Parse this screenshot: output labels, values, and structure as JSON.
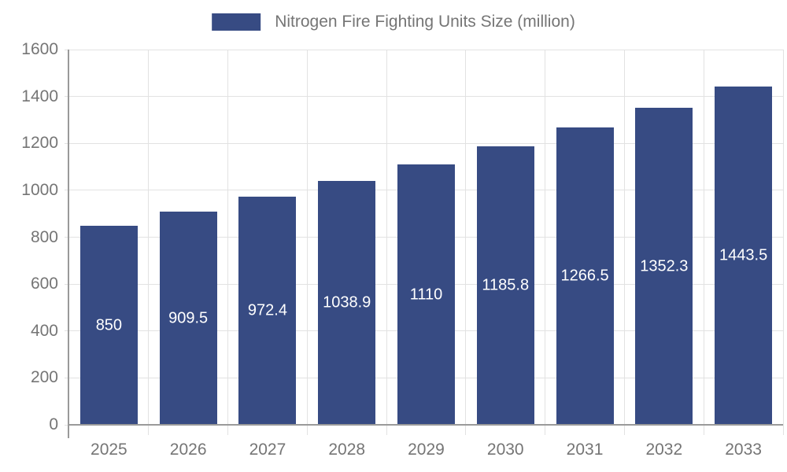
{
  "legend": {
    "label": "Nitrogen Fire Fighting Units Size (million)"
  },
  "chart_data": {
    "type": "bar",
    "title": "Nitrogen Fire Fighting Units Size (million)",
    "categories": [
      "2025",
      "2026",
      "2027",
      "2028",
      "2029",
      "2030",
      "2031",
      "2032",
      "2033"
    ],
    "values": [
      850,
      909.5,
      972.4,
      1038.9,
      1110,
      1185.8,
      1266.5,
      1352.3,
      1443.5
    ],
    "value_labels": [
      "850",
      "909.5",
      "972.4",
      "1038.9",
      "1110",
      "1185.8",
      "1266.5",
      "1352.3",
      "1443.5"
    ],
    "xlabel": "",
    "ylabel": "",
    "ylim": [
      0,
      1600
    ],
    "yticks": [
      0,
      200,
      400,
      600,
      800,
      1000,
      1200,
      1400,
      1600
    ],
    "grid": true,
    "legend_position": "top-center",
    "colors": {
      "bar": "#374b83",
      "grid": "#e2e2e2",
      "axis": "#9a9a9a",
      "tick_text": "#757575",
      "value_label_text": "#ffffff",
      "background": "#ffffff"
    }
  }
}
